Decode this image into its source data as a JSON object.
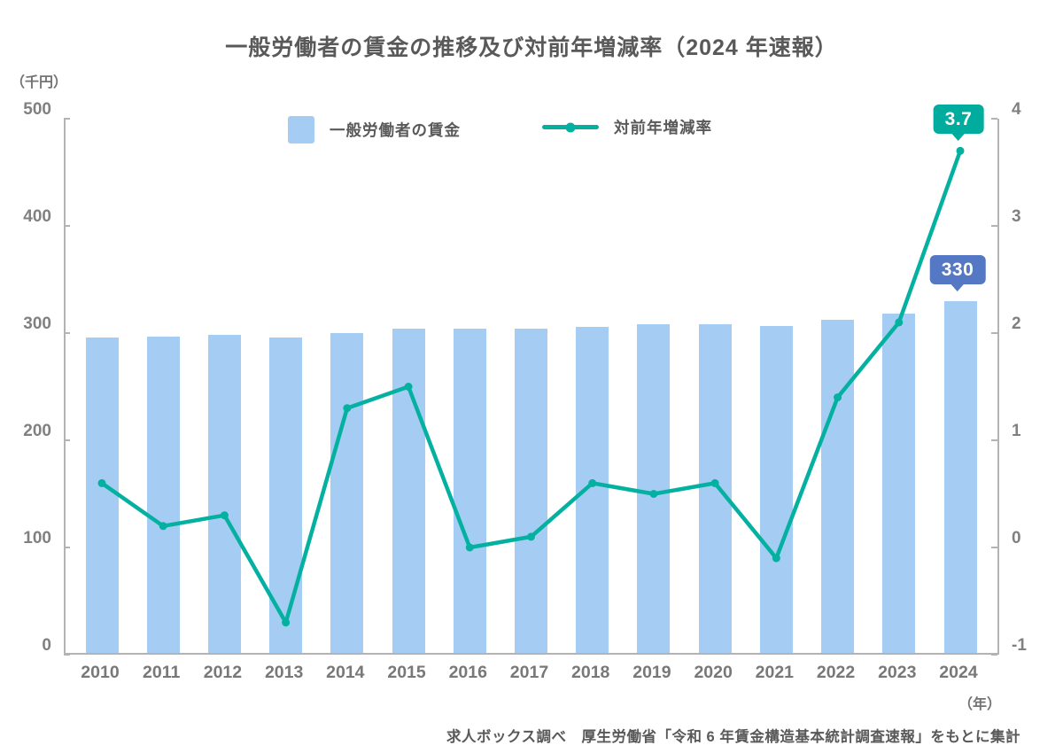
{
  "title": "一般労働者の賃金の推移及び対前年増減率（2024 年速報）",
  "left_axis_unit": "（千円）",
  "x_axis_unit": "（年）",
  "source": "求人ボックス調べ　厚生労働省「令和 6 年賃金構造基本統計調査速報」をもとに集計",
  "legend": {
    "bars": "一般労働者の賃金",
    "line": "対前年増減率"
  },
  "annotations": {
    "line_peak": "3.7",
    "bar_peak": "330"
  },
  "colors": {
    "bar": "#a5cdf3",
    "line": "#04b1a1",
    "teal_badge": "#00ac9e",
    "blue_badge": "#5478c4",
    "axis": "#b3b3b3"
  },
  "chart_data": {
    "type": "bar+line",
    "title": "一般労働者の賃金の推移及び対前年増減率（2024 年速報）",
    "categories": [
      "2010",
      "2011",
      "2012",
      "2013",
      "2014",
      "2015",
      "2016",
      "2017",
      "2018",
      "2019",
      "2020",
      "2021",
      "2022",
      "2023",
      "2024"
    ],
    "series": [
      {
        "name": "一般労働者の賃金",
        "type": "bar",
        "axis": "left",
        "unit": "千円",
        "values": [
          296,
          297,
          298,
          296,
          300,
          304,
          304,
          304,
          306,
          308,
          308,
          307,
          312,
          318,
          330
        ]
      },
      {
        "name": "対前年増減率",
        "type": "line",
        "axis": "right",
        "unit": "%",
        "values": [
          0.6,
          0.2,
          0.3,
          -0.7,
          1.3,
          1.5,
          0.0,
          0.1,
          0.6,
          0.5,
          0.6,
          -0.1,
          1.4,
          2.1,
          3.7
        ]
      }
    ],
    "left_axis": {
      "label": "（千円）",
      "range": [
        0,
        500
      ],
      "ticks": [
        0,
        100,
        200,
        300,
        400,
        500
      ]
    },
    "right_axis": {
      "label": "",
      "range": [
        -1,
        4
      ],
      "ticks": [
        -1,
        0,
        1,
        2,
        3,
        4
      ]
    },
    "x_axis": {
      "label": "（年）"
    },
    "grid": false,
    "legend_position": "top"
  }
}
